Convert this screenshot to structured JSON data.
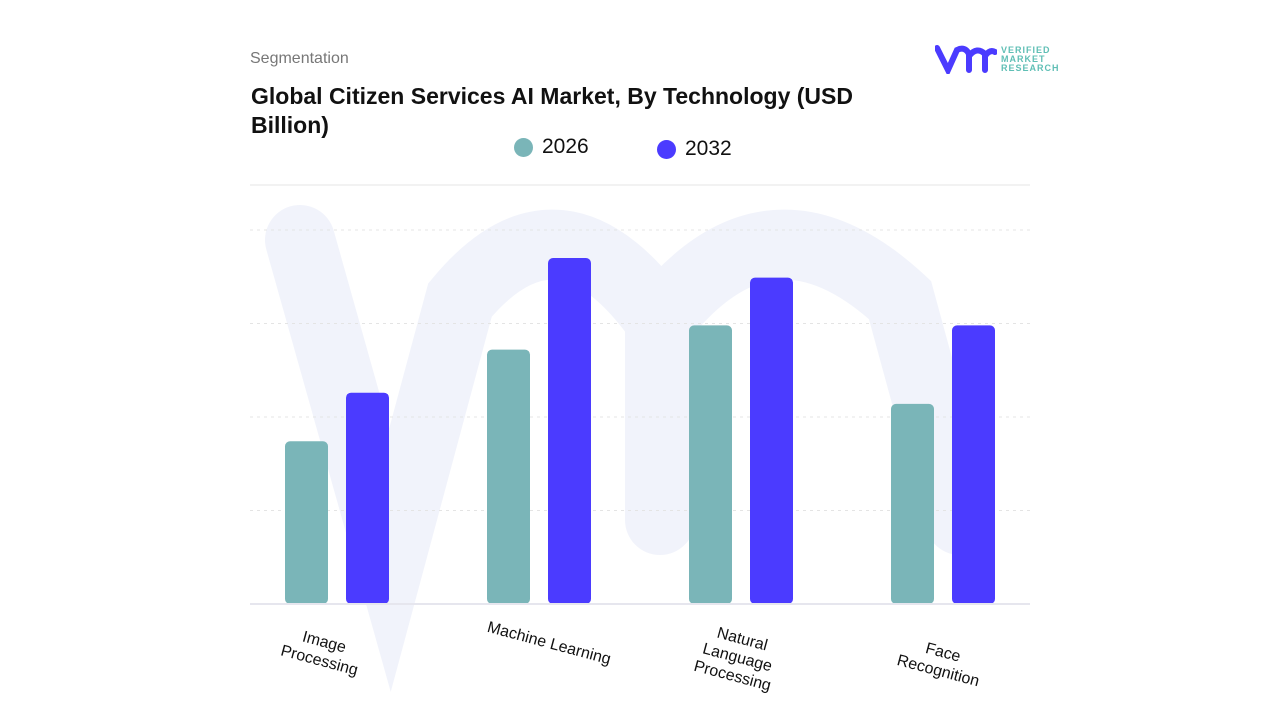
{
  "header": {
    "segment_label": "Segmentation",
    "logo_text": [
      "VERIFIED",
      "MARKET",
      "RESEARCH"
    ]
  },
  "chart_data": {
    "type": "bar",
    "title": "Global Citizen Services AI Market, By Technology (USD Billion)",
    "categories": [
      "Image Processing",
      "Machine Learning",
      "Natural Language Processing",
      "Face Recognition"
    ],
    "series": [
      {
        "name": "2026",
        "color": "#7ab5b8",
        "values": [
          1.74,
          2.72,
          2.98,
          2.14
        ]
      },
      {
        "name": "2032",
        "color": "#4b3bff",
        "values": [
          2.26,
          3.7,
          3.49,
          2.98
        ]
      }
    ],
    "ylim": [
      0,
      4.5
    ],
    "grid": true,
    "legend": "top-center",
    "xlabel": "",
    "ylabel": ""
  }
}
